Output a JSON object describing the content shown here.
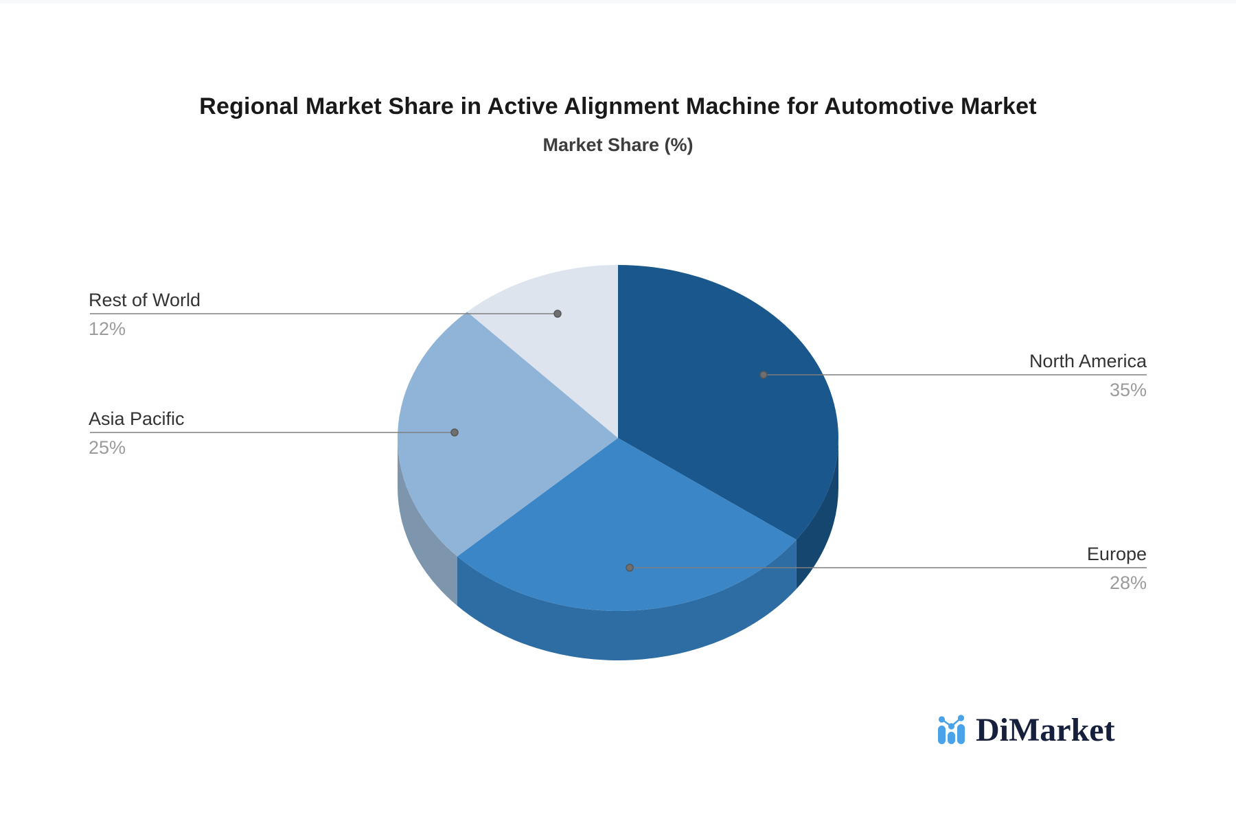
{
  "page": {
    "background": "#ffffff"
  },
  "chart_data": {
    "type": "pie",
    "style": "3d",
    "title": "Regional Market Share in Active Alignment Machine for Automotive Market",
    "subtitle": "Market Share (%)",
    "unit": "%",
    "direction": "clockwise",
    "start_angle_deg": 0,
    "legend_position": "none",
    "label_style": "connector-lines",
    "slices": [
      {
        "label": "North America",
        "value": 35,
        "display": "35%",
        "color": "#1a578c",
        "side_color": "#14466f"
      },
      {
        "label": "Europe",
        "value": 28,
        "display": "28%",
        "color": "#3a86c7",
        "side_color": "#2e6da3"
      },
      {
        "label": "Asia Pacific",
        "value": 25,
        "display": "25%",
        "color": "#90b3d8",
        "side_color": "#7d96ad"
      },
      {
        "label": "Rest of World",
        "value": 12,
        "display": "12%",
        "color": "#dde4ee",
        "side_color": "#b9c4d4"
      }
    ],
    "label_name_color": "#333333",
    "label_value_color": "#9b9b9b",
    "leader_line_color": "#7f7f7f"
  },
  "branding": {
    "logo_text": "DiMarket",
    "logo_color": "#16203c",
    "icon_name": "bar-line-chart-icon",
    "icon_color": "#4aa2e9"
  }
}
